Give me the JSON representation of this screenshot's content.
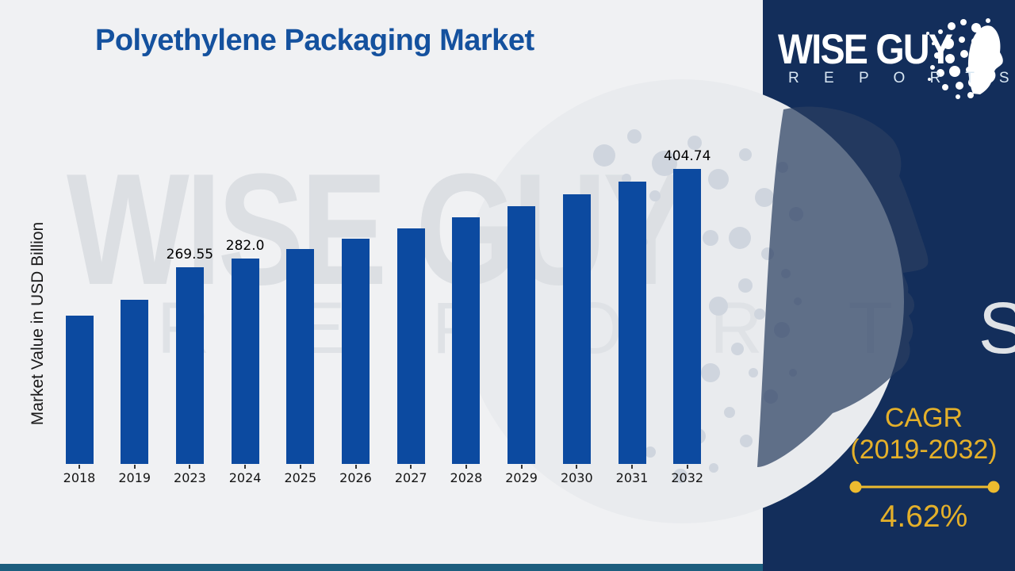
{
  "title": "Polyethylene Packaging Market",
  "y_axis_label": "Market Value in USD Billion",
  "watermark": {
    "line1": "WISE GUY",
    "line2": "R E P O R T S"
  },
  "logo": {
    "name_line": "WISE GUY",
    "sub_line": "R E P O R T S"
  },
  "cagr": {
    "heading": "CAGR",
    "range": "(2019-2032)",
    "value": "4.62%"
  },
  "colors": {
    "background": "#f0f1f3",
    "bar": "#0c4aa0",
    "title_blue": "#14519e",
    "navy_panel": "#132e5b",
    "accent_gold": "#e4b02a",
    "teal_footer": "#1d5e7e",
    "watermark_gray": "#dcdfe3",
    "circle_gray": "#e9ebee"
  },
  "chart_data": {
    "type": "bar",
    "title": "Polyethylene Packaging Market",
    "xlabel": "",
    "ylabel": "Market Value in USD Billion",
    "categories": [
      "2018",
      "2019",
      "2023",
      "2024",
      "2025",
      "2026",
      "2027",
      "2028",
      "2029",
      "2030",
      "2031",
      "2032"
    ],
    "values": [
      204.0,
      225.0,
      269.55,
      282.0,
      295.06,
      308.69,
      322.95,
      337.87,
      353.48,
      369.81,
      386.9,
      404.74
    ],
    "data_labels": {
      "2023": "269.55",
      "2024": "282.0",
      "2032": "404.74"
    },
    "ylim": [
      0,
      440
    ],
    "grid": false,
    "legend": "none",
    "bar_color": "#0c4aa0",
    "cagr_percent": "4.62%",
    "cagr_period": "(2019-2032)"
  }
}
